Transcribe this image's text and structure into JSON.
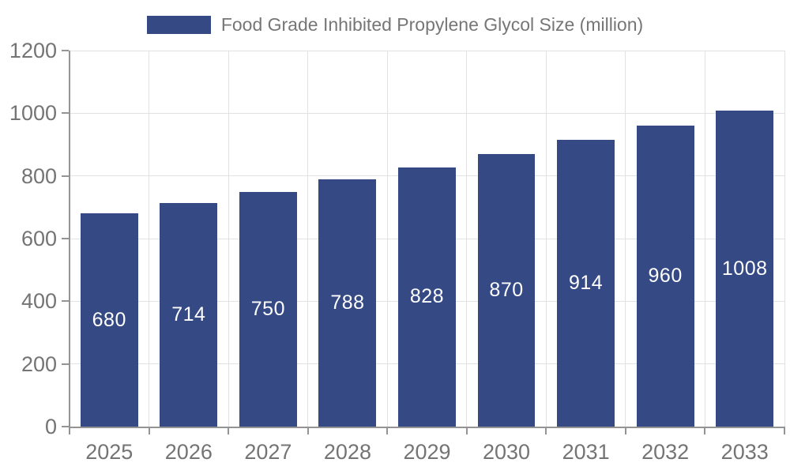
{
  "chart_data": {
    "type": "bar",
    "title": "Food Grade Inhibited Propylene Glycol Size (million)",
    "legend": [
      "Food Grade Inhibited Propylene Glycol Size (million)"
    ],
    "legend_position": "top",
    "categories": [
      "2025",
      "2026",
      "2027",
      "2028",
      "2029",
      "2030",
      "2031",
      "2032",
      "2033"
    ],
    "values": [
      680,
      714,
      750,
      788,
      828,
      870,
      914,
      960,
      1008
    ],
    "xlabel": "",
    "ylabel": "",
    "ylim": [
      0,
      1200
    ],
    "y_ticks": [
      0,
      200,
      400,
      600,
      800,
      1000,
      1200
    ],
    "grid": true,
    "value_labels_shown": true
  },
  "colors": {
    "bar": "#354a85",
    "grid": "#e2e2e2",
    "axis": "#949494",
    "tick_label": "#747474",
    "legend_text": "#767676",
    "value_label": "#ffffff",
    "background": "#ffffff"
  }
}
